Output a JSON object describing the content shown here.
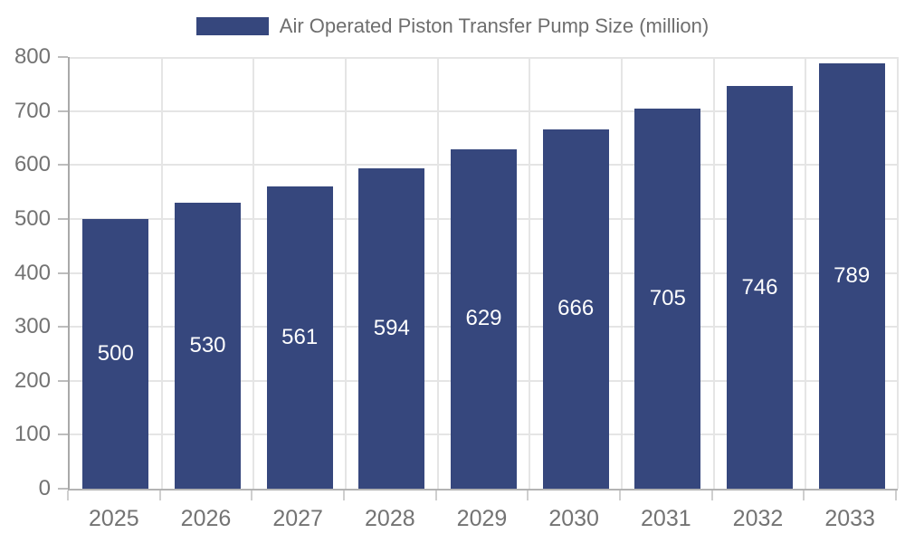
{
  "legend": {
    "label": "Air Operated Piston Transfer Pump Size (million)",
    "swatch_color": "#36477D"
  },
  "chart_data": {
    "type": "bar",
    "title": "Air Operated Piston Transfer Pump Size (million)",
    "categories": [
      "2025",
      "2026",
      "2027",
      "2028",
      "2029",
      "2030",
      "2031",
      "2032",
      "2033"
    ],
    "series": [
      {
        "name": "Air Operated Piston Transfer Pump Size (million)",
        "values": [
          500,
          530,
          561,
          594,
          629,
          666,
          705,
          746,
          789
        ],
        "color": "#36477D"
      }
    ],
    "xlabel": "",
    "ylabel": "",
    "ylim": [
      0,
      800
    ],
    "y_ticks": [
      0,
      100,
      200,
      300,
      400,
      500,
      600,
      700,
      800
    ],
    "grid": true,
    "legend_position": "top",
    "value_labels": "inside-center",
    "value_label_color": "#ffffff",
    "axis_text_color": "#737373",
    "grid_color": "#e5e5e5",
    "axis_line_color": "#a9a9a9",
    "background_color": "#ffffff"
  }
}
